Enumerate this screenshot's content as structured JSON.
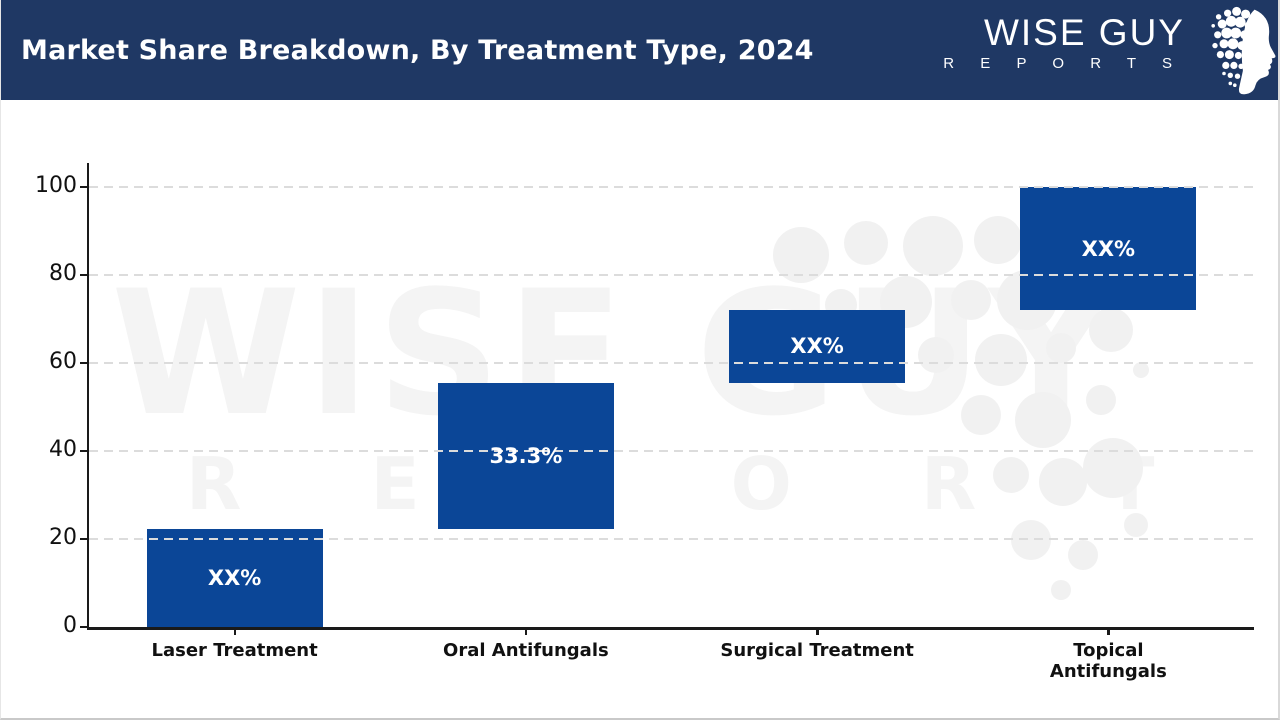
{
  "header": {
    "title": "Market Share Breakdown, By Treatment Type, 2024",
    "bg_color": "#1f3864",
    "logo": {
      "line1": "WISE GUY",
      "line2": "R E P O R T S"
    }
  },
  "watermark": {
    "line1": "WISE GUY",
    "line2": "R E P O R T S"
  },
  "chart_data": {
    "type": "bar",
    "subtype": "waterfall",
    "title": "Market Share Breakdown, By Treatment Type, 2024",
    "xlabel": "",
    "ylabel": "",
    "categories": [
      "Laser Treatment",
      "Oral Antifungals",
      "Surgical Treatment",
      "Topical\nAntifungals"
    ],
    "bars": [
      {
        "category": "Laser Treatment",
        "label": "XX%",
        "start": 0,
        "end": 22.2
      },
      {
        "category": "Oral Antifungals",
        "label": "33.3%",
        "start": 22.2,
        "end": 55.5
      },
      {
        "category": "Surgical Treatment",
        "label": "XX%",
        "start": 55.5,
        "end": 72.1
      },
      {
        "category": "Topical Antifungals",
        "label": "XX%",
        "start": 72.1,
        "end": 100
      }
    ],
    "yticks": [
      0,
      20,
      40,
      60,
      80,
      100
    ],
    "ylim": [
      0,
      105.5
    ],
    "grid": "horizontal dashed",
    "legend": "none",
    "bar_color": "#0b4697",
    "bar_label_color": "#ffffff",
    "axis_color": "#1a1a1a",
    "grid_color": "#dcdcdc"
  }
}
